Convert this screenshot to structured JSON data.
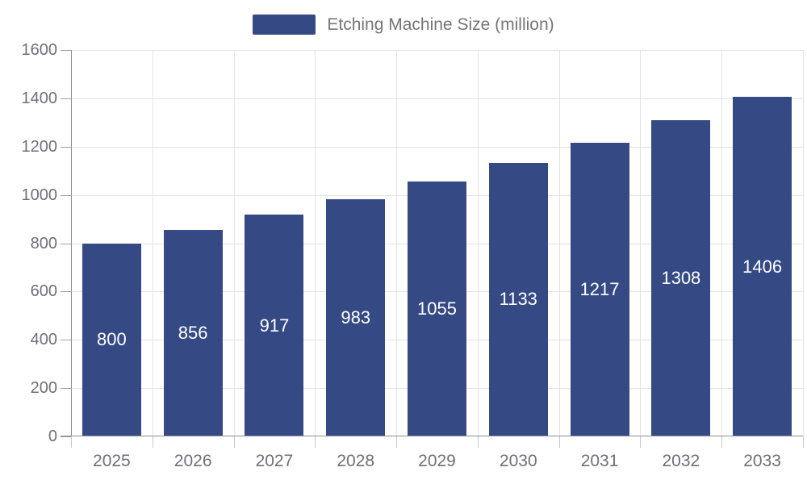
{
  "legend": {
    "label": "Etching Machine Size (million)"
  },
  "chart_data": {
    "type": "bar",
    "title": "Etching Machine Size (million)",
    "categories": [
      "2025",
      "2026",
      "2027",
      "2028",
      "2029",
      "2030",
      "2031",
      "2032",
      "2033"
    ],
    "values": [
      800,
      856,
      917,
      983,
      1055,
      1133,
      1217,
      1308,
      1406
    ],
    "xlabel": "",
    "ylabel": "",
    "ylim": [
      0,
      1600
    ],
    "ytick_step": 200,
    "yticks": [
      0,
      200,
      400,
      600,
      800,
      1000,
      1200,
      1400,
      1600
    ],
    "grid": true,
    "legend_position": "top-center",
    "value_labels": "inside-center"
  },
  "colors": {
    "bar": "#354a85",
    "value_label": "#ffffff",
    "axis_label": "#6e7079",
    "legend_text": "#757575",
    "grid_line": "#e3e3e9",
    "axis_line": "#8c8f98",
    "y_tick": "#9a9da5",
    "x_tick": "#c4c7ce",
    "background": "#ffffff"
  }
}
